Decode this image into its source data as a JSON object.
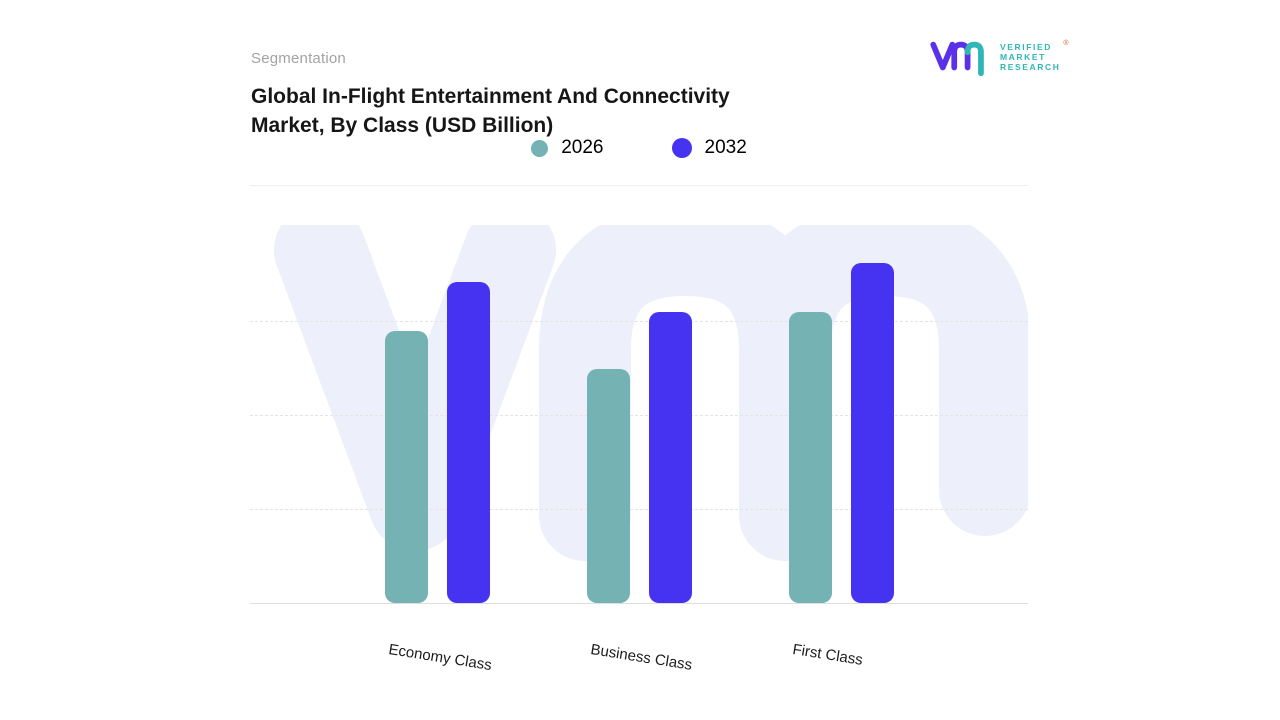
{
  "header": {
    "eyebrow": "Segmentation",
    "title": "Global In-Flight Entertainment And Connectivity Market, By Class (USD Billion)"
  },
  "brand": {
    "lines": [
      "VERIFIED",
      "MARKET",
      "RESEARCH"
    ],
    "registered": "®",
    "mark_purple": "#5a31e9",
    "mark_teal": "#2fb6b6"
  },
  "chart_data": {
    "type": "bar",
    "title": "Global In-Flight Entertainment And Connectivity Market, By Class (USD Billion)",
    "categories": [
      "Economy Class",
      "Business Class",
      "First Class"
    ],
    "series": [
      {
        "name": "2026",
        "color": "#74b2b4",
        "values": [
          0.72,
          0.62,
          0.77
        ]
      },
      {
        "name": "2032",
        "color": "#4633f2",
        "values": [
          0.85,
          0.77,
          0.9
        ]
      }
    ],
    "ylim": [
      0,
      1
    ],
    "value_axis": "unlabeled (relative bar heights, fraction of plot height)",
    "grid": "horizontal-dashed",
    "legend_position": "top",
    "watermark_color": "#edeffb"
  }
}
